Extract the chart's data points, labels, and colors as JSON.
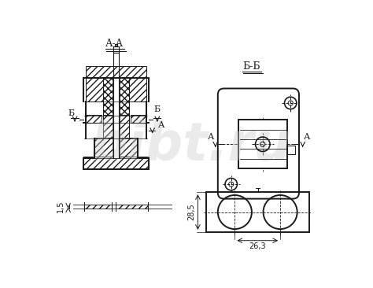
{
  "bg_color": "#ffffff",
  "line_color": "#1a1a1a",
  "watermark_text": "bibt.ru",
  "watermark_color": "#cccccc",
  "label_AA": "А-А",
  "label_BB": "Б-Б",
  "label_A": "А",
  "label_B": "Б",
  "dim_15": "1,5",
  "dim_285": "28,5",
  "dim_263": "26,3"
}
